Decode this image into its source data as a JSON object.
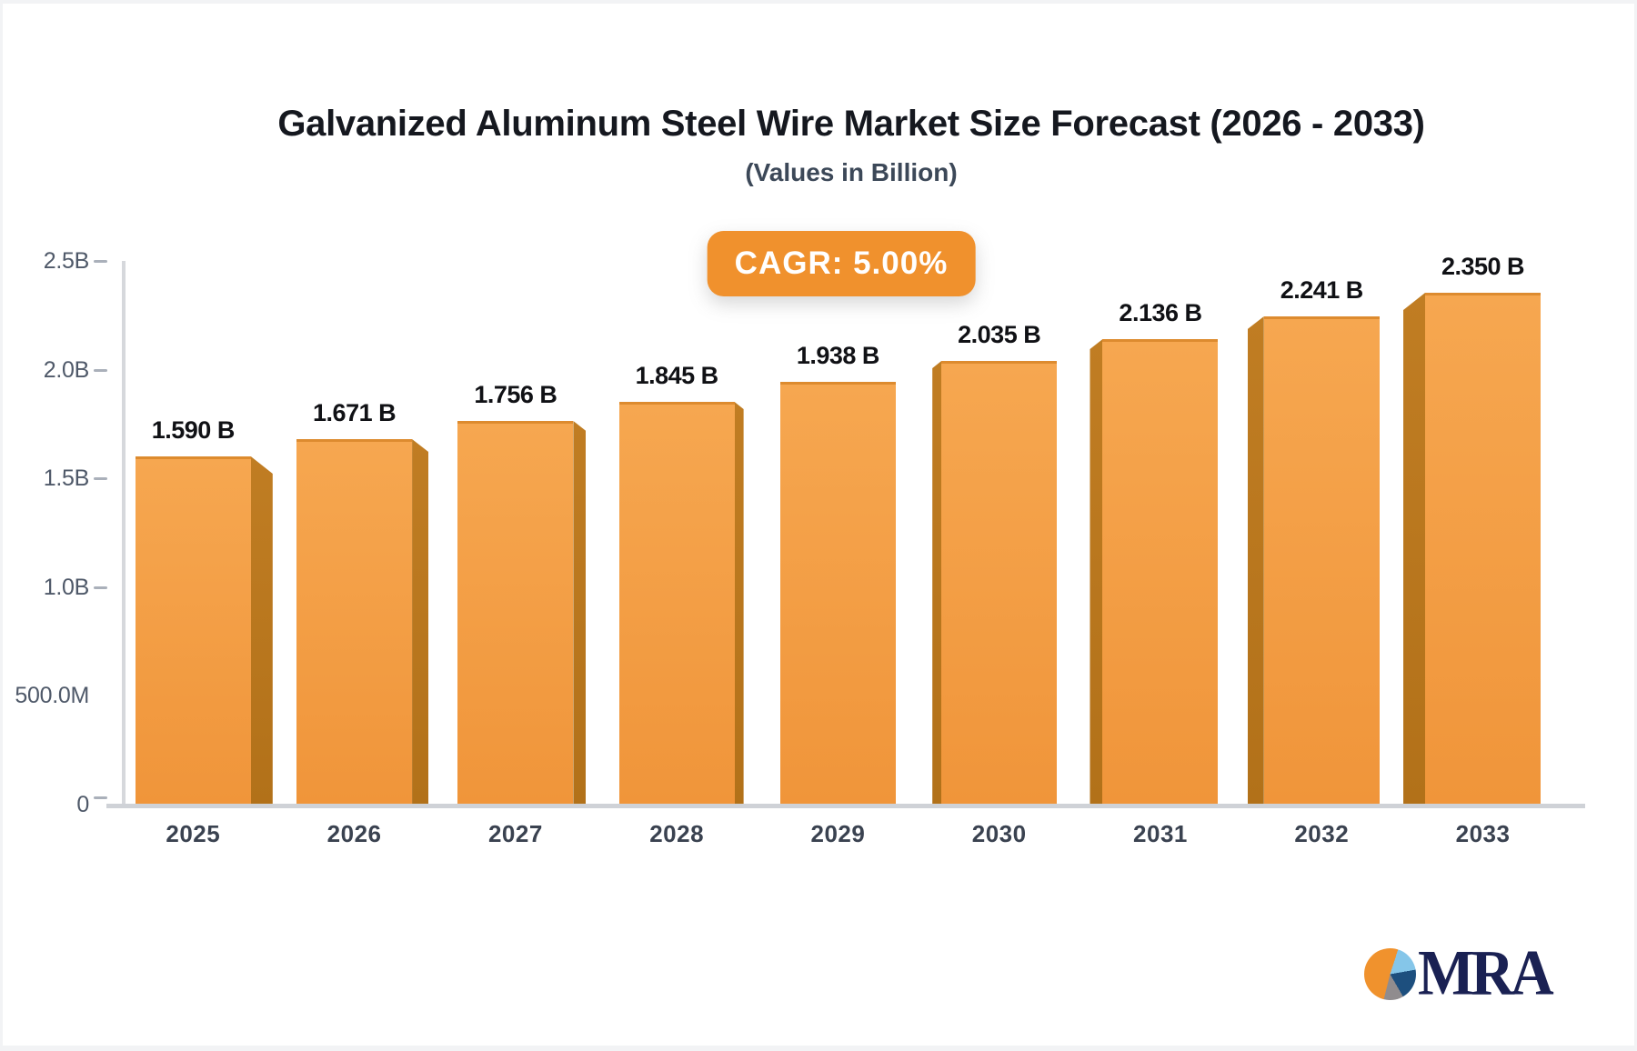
{
  "header": {
    "title": "Galvanized Aluminum Steel Wire Market Size Forecast (2026 - 2033)",
    "subtitle": "(Values in Billion)",
    "cagr_label": "CAGR: 5.00%"
  },
  "chart_data": {
    "type": "bar",
    "title": "Galvanized Aluminum Steel Wire Market Size Forecast (2026 - 2033)",
    "subtitle": "(Values in Billion)",
    "annotation": "CAGR: 5.00%",
    "categories": [
      "2025",
      "2026",
      "2027",
      "2028",
      "2029",
      "2030",
      "2031",
      "2032",
      "2033"
    ],
    "values": [
      1.59,
      1.671,
      1.756,
      1.845,
      1.938,
      2.035,
      2.136,
      2.241,
      2.35
    ],
    "value_labels": [
      "1.590 B",
      "1.671 B",
      "1.756 B",
      "1.845 B",
      "1.938 B",
      "2.035 B",
      "2.136 B",
      "2.241 B",
      "2.350 B"
    ],
    "unit": "billion USD",
    "xlabel": "",
    "ylabel": "",
    "ylim": [
      0,
      2.5
    ],
    "yticks": [
      {
        "value": 2.5,
        "label": "2.5B",
        "tick": true
      },
      {
        "value": 2.0,
        "label": "2.0B",
        "tick": true
      },
      {
        "value": 1.5,
        "label": "1.5B",
        "tick": true
      },
      {
        "value": 1.0,
        "label": "1.0B",
        "tick": true
      },
      {
        "value": 0.5,
        "label": "500.0M",
        "tick": false
      },
      {
        "value": 0,
        "label": "0",
        "tick": true
      }
    ],
    "grid": false,
    "legend": "none",
    "bar_style": "3d-perspective-toward-center",
    "colors": {
      "bar_face_top": "#F6A750",
      "bar_face_bottom": "#F0953A",
      "bar_side": "#BA7821",
      "axis_line": "#CFD2D7",
      "tick_dash": "#AAB0BA",
      "y_label": "#4F5969",
      "x_label": "#3A4250",
      "value_label": "#101115",
      "badge_bg": "#F0912D",
      "badge_text": "#FFFFFF"
    }
  },
  "logo": {
    "text": "MRA",
    "pie_colors": {
      "orange": "#F0922D",
      "light_blue": "#85C6E9",
      "navy": "#1D4F7E",
      "gray": "#908C8E"
    },
    "text_color": "#1A2153"
  }
}
